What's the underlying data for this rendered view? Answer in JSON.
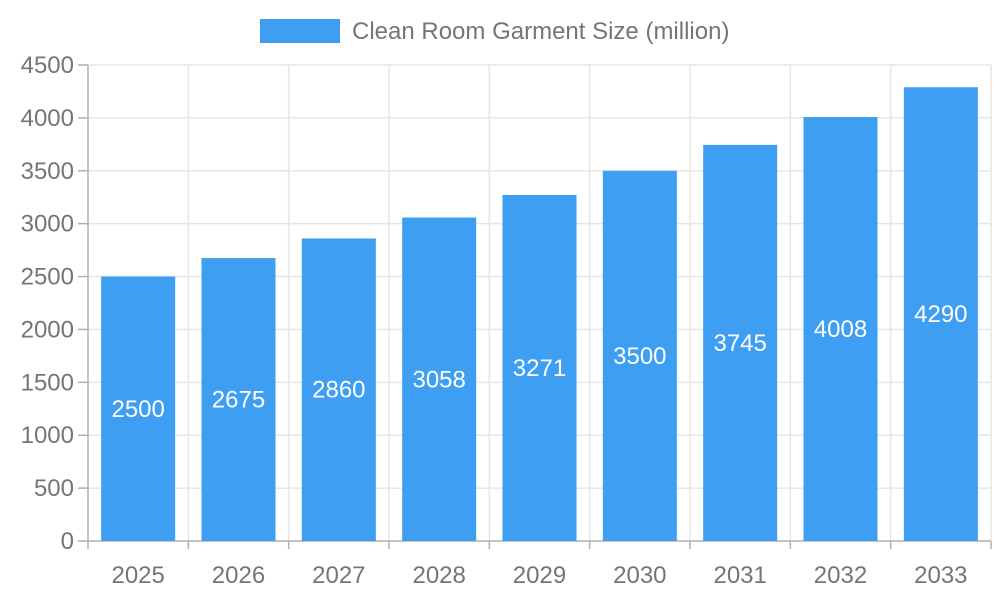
{
  "chart_data": {
    "type": "bar",
    "title": "Clean Room Garment Size (million)",
    "legend_entries": [
      "Clean Room Garment Size (million)"
    ],
    "legend_position": "top-center",
    "categories": [
      "2025",
      "2026",
      "2027",
      "2028",
      "2029",
      "2030",
      "2031",
      "2032",
      "2033"
    ],
    "values": [
      2500,
      2675,
      2860,
      3058,
      3271,
      3500,
      3745,
      4008,
      4290
    ],
    "data_labels": [
      "2500",
      "2675",
      "2860",
      "3058",
      "3271",
      "3500",
      "3745",
      "4008",
      "4290"
    ],
    "xlabel": "",
    "ylabel": "",
    "ylim": [
      0,
      4500
    ],
    "ytick_step": 500,
    "ytick_labels": [
      "0",
      "500",
      "1000",
      "1500",
      "2000",
      "2500",
      "3000",
      "3500",
      "4000",
      "4500"
    ],
    "grid": true,
    "colors": {
      "bar": "#3E9EF1",
      "bar_label_text": "#FFFFFF",
      "grid_line": "#E6E6E6",
      "axis_line": "#B0B0B0",
      "tick_text": "#757575",
      "legend_text": "#757575",
      "background": "#FFFFFF"
    }
  }
}
